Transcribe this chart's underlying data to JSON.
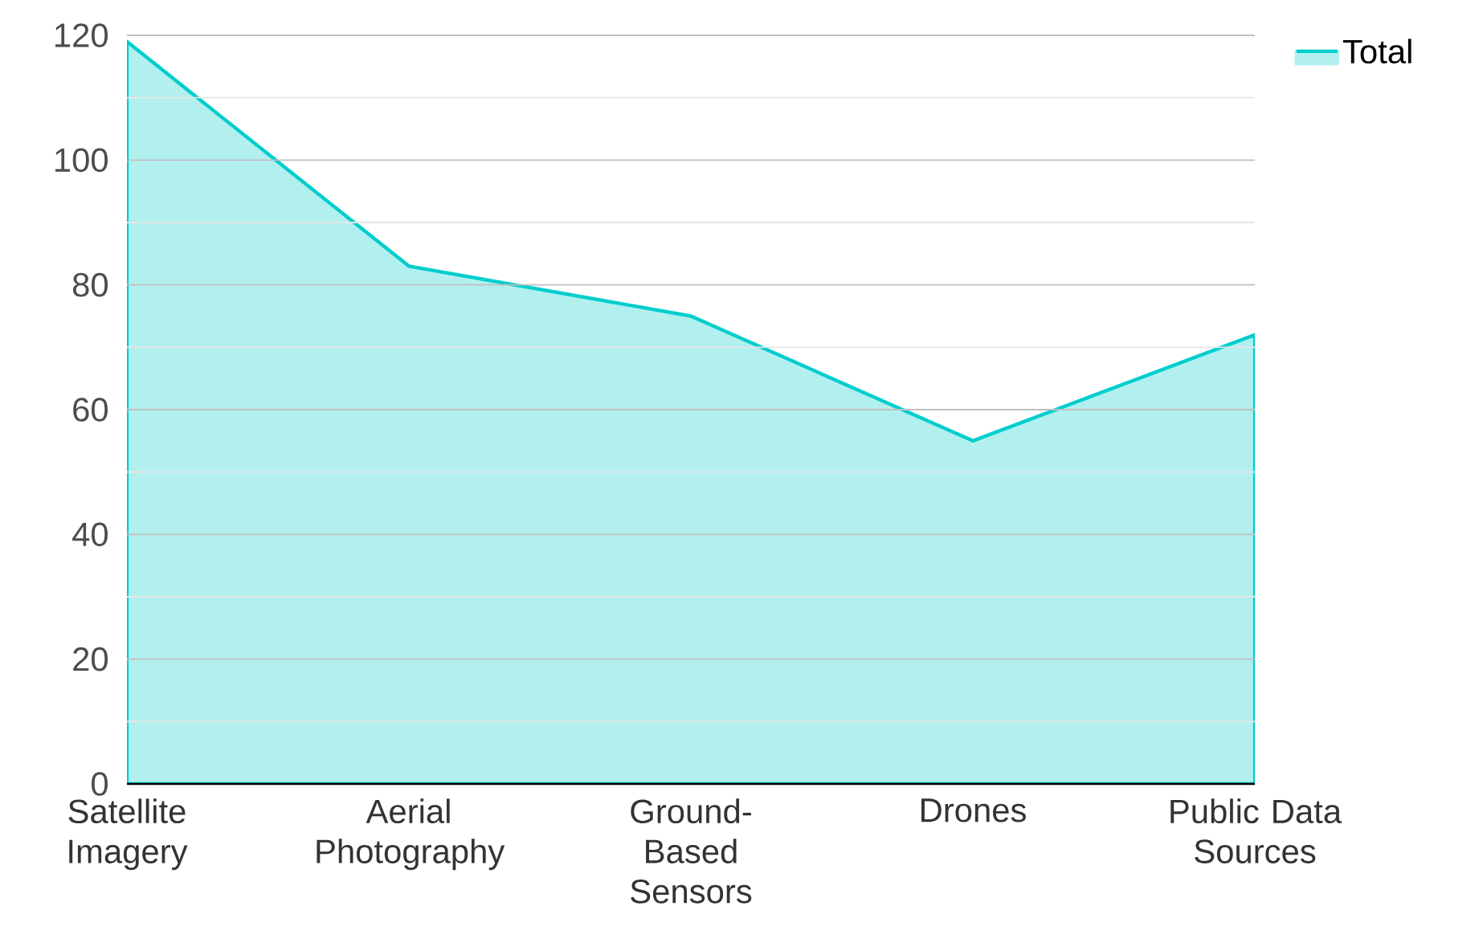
{
  "chart_data": {
    "type": "area",
    "categories": [
      "Satellite Imagery",
      "Aerial Photography",
      "Ground-Based Sensors",
      "Drones",
      "Public Data Sources"
    ],
    "series": [
      {
        "name": "Total",
        "color": "#b2f0f0",
        "values": [
          119,
          83,
          75,
          55,
          72
        ]
      }
    ],
    "ylim": [
      0,
      120
    ],
    "yticks": [
      0,
      20,
      40,
      60,
      80,
      100,
      120
    ],
    "grid": "y",
    "legend": "top right"
  }
}
